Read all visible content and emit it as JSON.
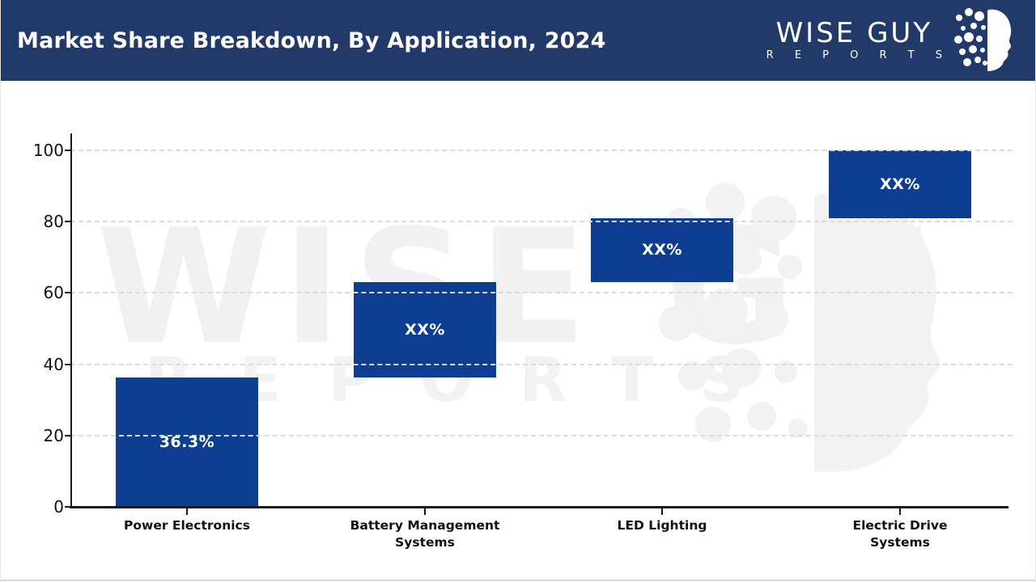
{
  "header": {
    "title": "Market Share Breakdown, By Application, 2024",
    "bg_color": "#223a69",
    "logo": {
      "line1": "WISE GUY",
      "line2": "R E P O R T S"
    }
  },
  "watermark": {
    "line1": "WISE GU",
    "line2": "REPORTS"
  },
  "chart_data": {
    "type": "bar",
    "subtype": "floating-waterfall",
    "title": "Market Share Breakdown, By Application, 2024",
    "categories": [
      "Power Electronics",
      "Battery Management\nSystems",
      "LED Lighting",
      "Electric Drive\nSystems"
    ],
    "segments": [
      {
        "category": "Power Electronics",
        "start": 0,
        "end": 36.3,
        "label": "36.3%"
      },
      {
        "category": "Battery Management Systems",
        "start": 36.3,
        "end": 63,
        "label": "XX%"
      },
      {
        "category": "LED Lighting",
        "start": 63,
        "end": 81,
        "label": "XX%"
      },
      {
        "category": "Electric Drive Systems",
        "start": 81,
        "end": 100,
        "label": "XX%"
      }
    ],
    "xlabel": "",
    "ylabel": "",
    "ylim": [
      0,
      100
    ],
    "yticks": [
      0,
      20,
      40,
      60,
      80,
      100
    ],
    "grid": "horizontal-dashed",
    "legend": "none",
    "bar_color": "#0d3e91",
    "label_color": "#ffffff",
    "axis_color": "#1a1a1a",
    "gridline_color": "#dcdcdc"
  }
}
